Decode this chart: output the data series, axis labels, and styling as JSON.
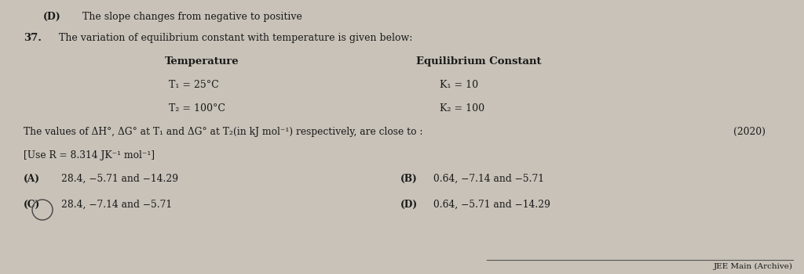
{
  "bg_color": "#c8c2b8",
  "text_color": "#1a1a1a",
  "line_d_left": "(D)",
  "line_d_right": "The slope changes from negative to positive",
  "q_number": "37.",
  "q_intro": "The variation of equilibrium constant with temperature is given below:",
  "col_temp": "Temperature",
  "col_eq": "Equilibrium Constant",
  "row1_temp": "T₁ = 25°C",
  "row1_eq": "K₁ = 10",
  "row2_temp": "T₂ = 100°C",
  "row2_eq": "K₂ = 100",
  "body_line1": "The values of ΔH°, ΔG° at T₁ and ΔG° at T₂(in kJ mol⁻¹) respectively, are close to :",
  "year": "(2020)",
  "use_r": "[Use R = 8.314 JK⁻¹ mol⁻¹]",
  "opt_a_label": "(A)",
  "opt_a_val": "28.4, −5.71 and −14.29",
  "opt_b_label": "(B)",
  "opt_b_val": "0.64, −7.14 and −5.71",
  "opt_c_label": "(C)",
  "opt_c_val": "28.4, −7.14 and −5.71",
  "opt_d_label": "(D)",
  "opt_d_val": "0.64, −5.71 and −14.29",
  "footer": "JEE Main (Archive)"
}
